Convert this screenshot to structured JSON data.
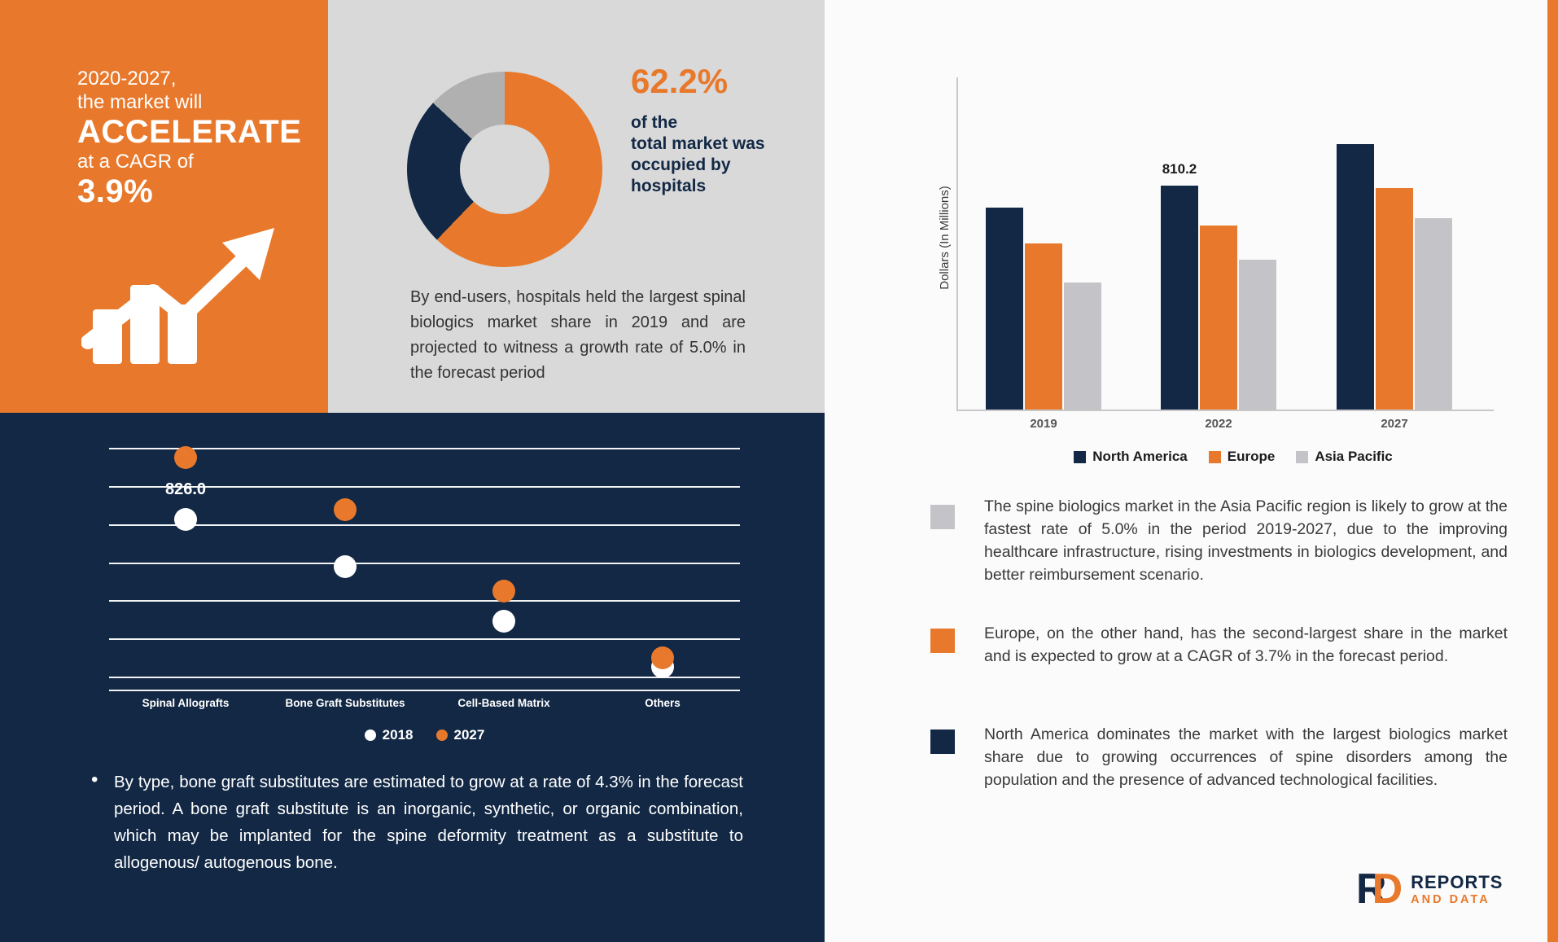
{
  "colors": {
    "orange": "#E8792C",
    "navy": "#122845",
    "panel_gray": "#D9D9D9",
    "donut_gray": "#B0B0B0",
    "bar_gray": "#C4C4C8",
    "text_dark": "#3a3a3a",
    "white": "#FFFFFF"
  },
  "left": {
    "headline": {
      "line1": "2020-2027,",
      "line2": "the market will",
      "line3": "ACCELERATE",
      "line4": "at a CAGR of",
      "line5": "3.9%"
    },
    "donut_stat": {
      "value": "62.2%",
      "caption_lines": [
        "of the",
        "total market was",
        "occupied by",
        "hospitals"
      ]
    },
    "end_user_paragraph": "By end-users, hospitals held the largest spinal biologics market share in 2019 and are projected to witness a growth rate of 5.0% in the forecast period",
    "type_bullet_marker": "•",
    "type_paragraph": "By type, bone graft substitutes are estimated to grow at a rate of 4.3% in the forecast period. A bone graft substitute is an inorganic, synthetic, or organic combination, which may be implanted for the spine deformity treatment as a substitute to allogenous/ autogenous bone."
  },
  "right": {
    "bullets": [
      {
        "color": "#C4C4C8",
        "text": "The spine biologics market in the Asia Pacific region is likely to grow at the fastest rate of 5.0% in the period 2019-2027, due to the improving healthcare infrastructure, rising investments in biologics development, and better reimbursement scenario."
      },
      {
        "color": "#E8792C",
        "text": "Europe, on the other hand, has the second-largest share in the market and is expected to grow at a CAGR of 3.7% in the forecast period."
      },
      {
        "color": "#122845",
        "text": "North America dominates the market with the largest biologics market share due to growing occurrences of spine disorders among the population and the presence of advanced technological facilities."
      }
    ],
    "logo": {
      "mark_r": "R",
      "mark_d": "D",
      "line1": "REPORTS",
      "line2": "AND DATA"
    }
  },
  "chart_data": [
    {
      "id": "hospital-share-donut",
      "type": "pie",
      "title": "62.2% of the total market was occupied by hospitals",
      "slices": [
        {
          "label": "Hospitals",
          "value": 62.2,
          "color": "#E8792C"
        },
        {
          "label": "",
          "value": 24.7,
          "color": "#122845"
        },
        {
          "label": "",
          "value": 13.1,
          "color": "#B0B0B0"
        }
      ]
    },
    {
      "id": "type-dot-plot",
      "type": "scatter",
      "categories": [
        "Spinal Allografts",
        "Bone Graft Substitutes",
        "Cell-Based Matrix",
        "Others"
      ],
      "series": [
        {
          "name": "2018",
          "color": "#FFFFFF",
          "values": [
            826.0,
            575,
            290,
            50
          ]
        },
        {
          "name": "2027",
          "color": "#E8792C",
          "values": [
            1150,
            875,
            450,
            100
          ]
        }
      ],
      "annotations": [
        {
          "text": "826.0",
          "category": "Spinal Allografts",
          "series": "2018"
        }
      ],
      "ylim": [
        0,
        1200
      ],
      "gridline_step": 200,
      "grid": true,
      "legend_position": "bottom"
    },
    {
      "id": "regional-bar",
      "type": "bar",
      "categories": [
        "2019",
        "2022",
        "2027"
      ],
      "series": [
        {
          "name": "North America",
          "color": "#122845",
          "values": [
            730,
            810.2,
            960
          ]
        },
        {
          "name": "Europe",
          "color": "#E8792C",
          "values": [
            600,
            665,
            800
          ]
        },
        {
          "name": "Asia Pacific",
          "color": "#C4C4C8",
          "values": [
            460,
            540,
            690
          ]
        }
      ],
      "ylabel": "Dollars (In Millions)",
      "ylim": [
        0,
        1200
      ],
      "grid": false,
      "data_labels": [
        {
          "category": "2022",
          "series": "North America",
          "text": "810.2"
        }
      ],
      "legend_position": "bottom"
    }
  ]
}
